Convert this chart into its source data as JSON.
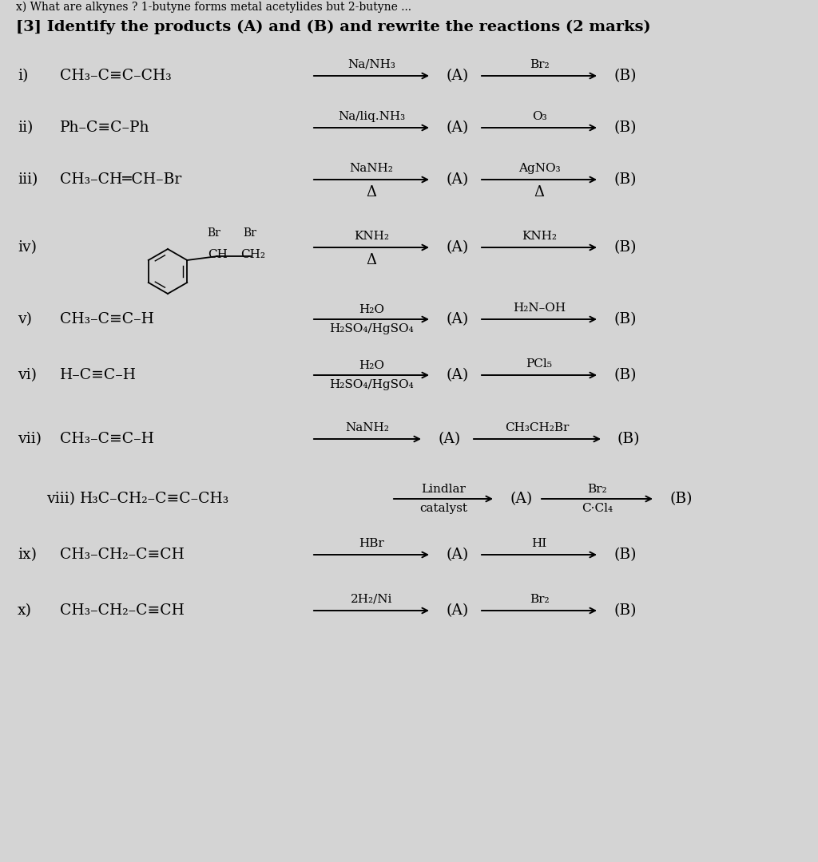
{
  "bg_color": "#d4d4d4",
  "title_line": "[3] Identify the products (A) and (B) and rewrite the reactions (2 marks)",
  "header_partial": "x) What are alkynes ? 1-butyne forms metal acetylides but 2-butyne ...",
  "rows": [
    {
      "num": "i)",
      "reactant": "CH₃–C≡C–CH₃",
      "reagent1": "Na/NH₃",
      "reagent2": "Br₂",
      "r1_has_delta": false,
      "r2_has_delta": false
    },
    {
      "num": "ii)",
      "reactant": "Ph–C≡C–Ph",
      "reagent1": "Na/liq.NH₃",
      "reagent2": "O₃",
      "r1_has_delta": false,
      "r2_has_delta": false
    },
    {
      "num": "iii)",
      "reactant": "CH₃–CH═CH–Br",
      "reagent1": "NaNH₂",
      "reagent2": "AgNO₃",
      "r1_has_delta": true,
      "r2_has_delta": true
    },
    {
      "num": "iv)",
      "reactant": "benzyl_dibromide",
      "reagent1": "KNH₂",
      "reagent2": "KNH₂",
      "r1_has_delta": true,
      "r2_has_delta": false
    },
    {
      "num": "v)",
      "reactant": "CH₃–C≡C–H",
      "reagent1": "H₂O\nH₂SO₄/HgSO₄",
      "reagent2": "H₂N–OH",
      "r1_has_delta": false,
      "r2_has_delta": false
    },
    {
      "num": "vi)",
      "reactant": "H–C≡C–H",
      "reagent1": "H₂O\nH₂SO₄/HgSO₄",
      "reagent2": "PCl₅",
      "r1_has_delta": false,
      "r2_has_delta": false
    },
    {
      "num": "vii)",
      "reactant": "CH₃–C≡C–H",
      "reagent1": "NaNH₂",
      "reagent2": "CH₃CH₂Br",
      "r1_has_delta": false,
      "r2_has_delta": false
    },
    {
      "num": "viii)",
      "reactant": "H₃C–CH₂–C≡C–CH₃",
      "reagent1": "Lindlar\ncatalyst",
      "reagent2": "Br₂\nC·Cl₄",
      "r1_has_delta": false,
      "r2_has_delta": false
    },
    {
      "num": "ix)",
      "reactant": "CH₃–CH₂–C≡CH",
      "reagent1": "HBr",
      "reagent2": "HI",
      "r1_has_delta": false,
      "r2_has_delta": false
    },
    {
      "num": "x)",
      "reactant": "CH₃–CH₂–C≡CH",
      "reagent1": "2H₂/Ni",
      "reagent2": "Br₂",
      "r1_has_delta": false,
      "r2_has_delta": false
    }
  ]
}
